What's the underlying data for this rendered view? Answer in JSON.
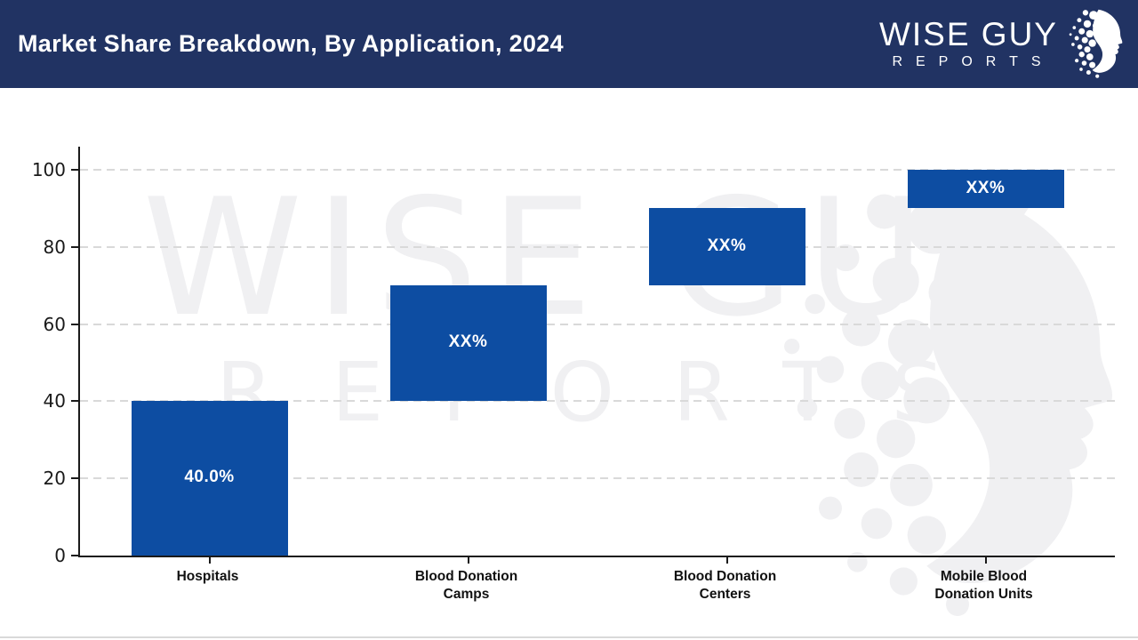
{
  "header": {
    "title": "Market Share Breakdown, By Application, 2024",
    "bg_color": "#213363",
    "logo": {
      "line1": "WISE GUY",
      "line2": "REPORTS"
    }
  },
  "watermark": {
    "line1": "WISE GUY",
    "line2": "REPORTS",
    "color": "#f0f0f2"
  },
  "chart_data": {
    "type": "bar",
    "subtype": "waterfall",
    "title": "Market Share Breakdown, By Application, 2024",
    "xlabel": "",
    "ylabel": "",
    "categories": [
      [
        "Hospitals"
      ],
      [
        "Blood Donation",
        "Camps"
      ],
      [
        "Blood Donation",
        "Centers"
      ],
      [
        "Mobile Blood",
        "Donation Units"
      ]
    ],
    "points": [
      {
        "category": "Hospitals",
        "start": 0,
        "end": 40,
        "label": "40.0%"
      },
      {
        "category": "Blood Donation Camps",
        "start": 40,
        "end": 70,
        "label": "XX%"
      },
      {
        "category": "Blood Donation Centers",
        "start": 70,
        "end": 90,
        "label": "XX%"
      },
      {
        "category": "Mobile Blood Donation Units",
        "start": 90,
        "end": 100,
        "label": "XX%"
      }
    ],
    "yticks": [
      0,
      20,
      40,
      60,
      80,
      100
    ],
    "ylim": [
      0,
      106
    ],
    "grid": "horizontal-dashed",
    "legend": "none",
    "bar_color": "#0d4da2",
    "bar_label_color": "#ffffff",
    "grid_color": "#d9d9d9",
    "axis_color": "#1a1a1a"
  }
}
